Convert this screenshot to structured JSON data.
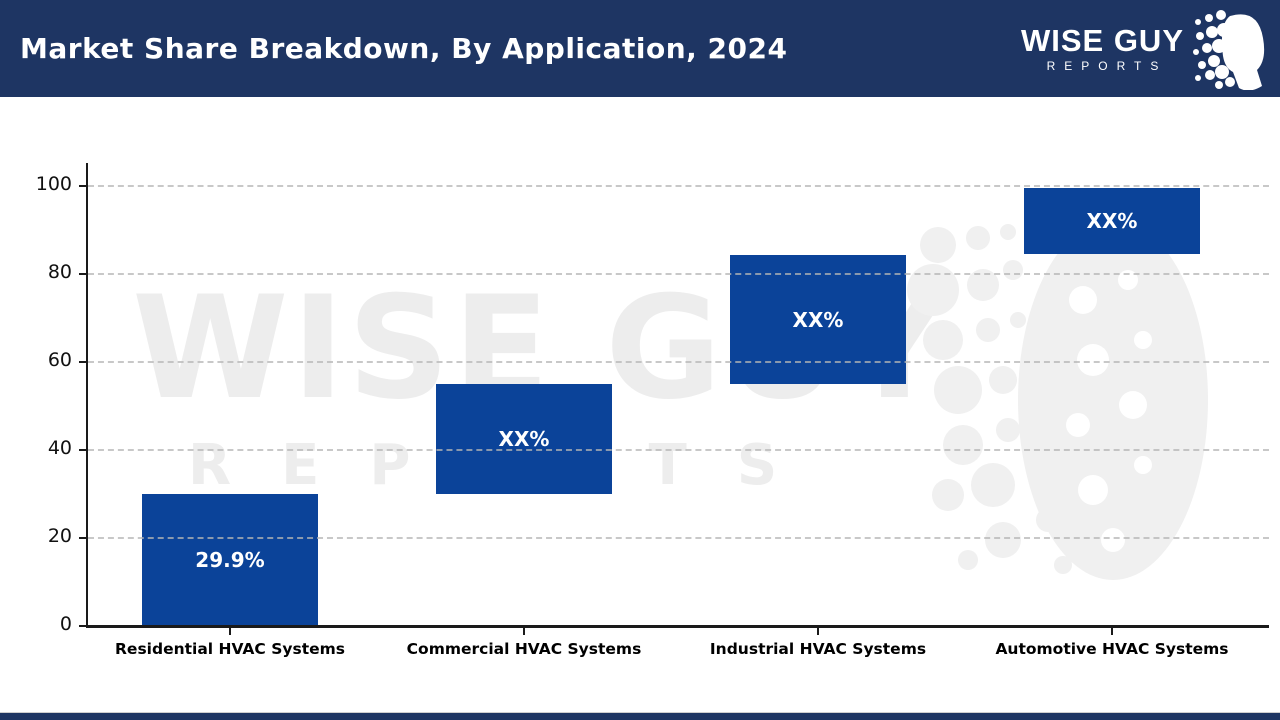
{
  "header": {
    "title": "Market Share Breakdown, By Application, 2024",
    "logo": {
      "name_top": "WISE GUY",
      "name_bottom": "REPORTS"
    }
  },
  "watermark": {
    "main": "WISE GUY",
    "sub": "REPORTS"
  },
  "colors": {
    "header_bg": "#1e3563",
    "footer_bg": "#1e3563",
    "bar": "#0b4399",
    "axis": "#1a1a1a",
    "grid": "#b6b6b6",
    "watermark": "#ededed"
  },
  "chart_data": {
    "type": "bar",
    "subtype": "floating-waterfall",
    "title": "Market Share Breakdown, By Application, 2024",
    "categories": [
      "Residential HVAC Systems",
      "Commercial HVAC Systems",
      "Industrial HVAC Systems",
      "Automotive HVAC Systems"
    ],
    "series": [
      {
        "name": "Market Share",
        "segments": [
          {
            "from": 0,
            "to": 30,
            "label": "29.9%"
          },
          {
            "from": 30,
            "to": 55,
            "label": "XX%"
          },
          {
            "from": 55,
            "to": 84.3,
            "label": "XX%"
          },
          {
            "from": 84.5,
            "to": 99.5,
            "label": "XX%"
          }
        ]
      }
    ],
    "xlabel": "",
    "ylabel": "",
    "yticks": [
      0,
      20,
      40,
      60,
      80,
      100
    ],
    "ylim": [
      0,
      104
    ],
    "grid": "dashed-horizontal",
    "legend": "none"
  }
}
